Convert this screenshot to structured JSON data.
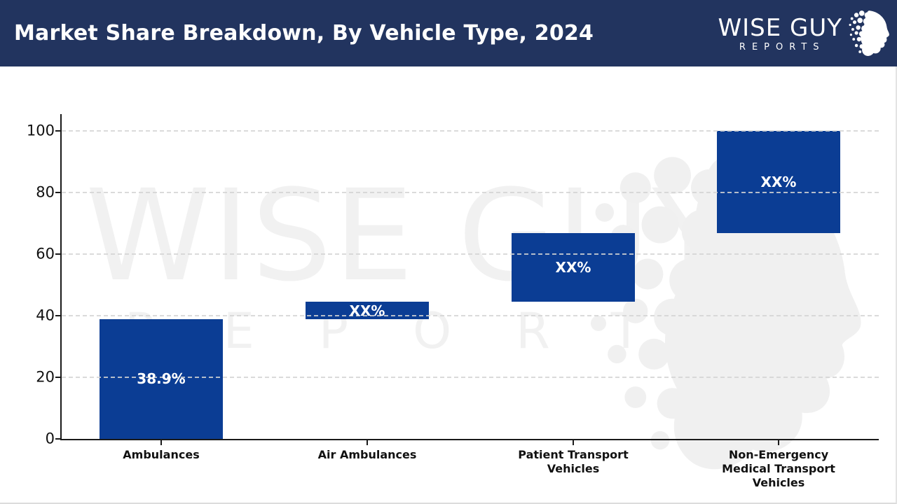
{
  "header": {
    "title": "Market Share Breakdown, By Vehicle Type, 2024",
    "logo": {
      "brand_line1": "WISE GUY",
      "brand_line2": "REPORTS"
    }
  },
  "watermark": {
    "line1": "WISE GUY",
    "line2": "REPORTS"
  },
  "chart_data": {
    "type": "bar",
    "subtype": "waterfall",
    "title": "Market Share Breakdown, By Vehicle Type, 2024",
    "xlabel": "",
    "ylabel": "",
    "ylim": [
      0,
      105
    ],
    "yticks": [
      0,
      20,
      40,
      60,
      80,
      100
    ],
    "grid": "horizontal-dashed",
    "legend": "none",
    "categories": [
      "Ambulances",
      "Air Ambulances",
      "Patient Transport Vehicles",
      "Non-Emergency Medical Transport Vehicles"
    ],
    "segments": [
      {
        "category": "Ambulances",
        "start": 0,
        "end": 38.9,
        "value_label": "38.9%"
      },
      {
        "category": "Air Ambulances",
        "start": 38.9,
        "end": 44.5,
        "value_label": "XX%"
      },
      {
        "category": "Patient Transport Vehicles",
        "start": 44.5,
        "end": 66.9,
        "value_label": "XX%"
      },
      {
        "category": "Non-Emergency Medical Transport Vehicles",
        "start": 66.9,
        "end": 100,
        "value_label": "XX%"
      }
    ],
    "colors": {
      "bar": "#0b3d94",
      "header_bg": "#22345f",
      "grid": "#d4d4d4",
      "axis": "#1a1a1a",
      "value_label": "#ffffff",
      "watermark": "#f1f1f1"
    }
  }
}
